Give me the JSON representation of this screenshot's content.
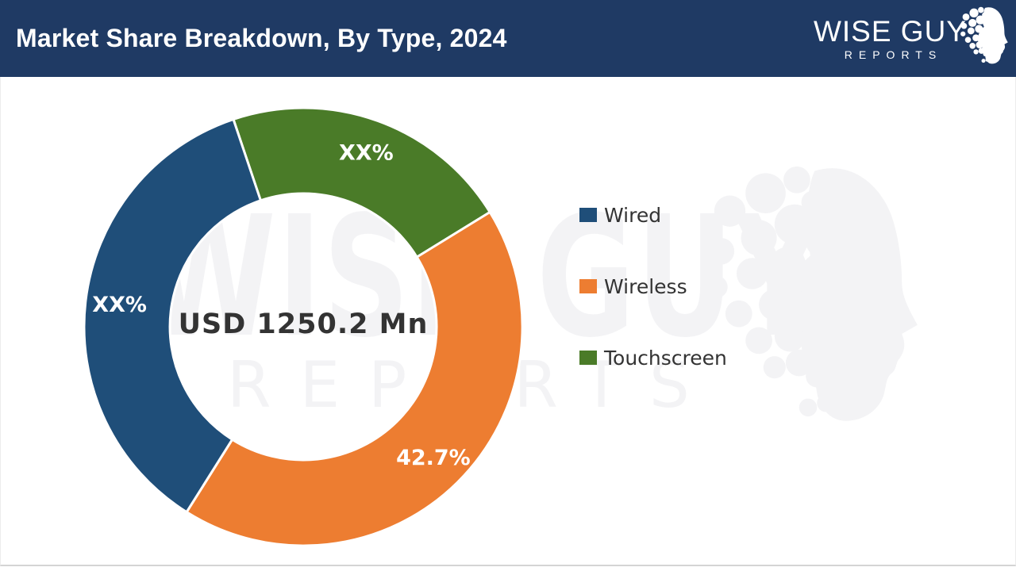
{
  "header": {
    "title": "Market Share Breakdown, By Type, 2024",
    "bg_color": "#1F3A64",
    "logo": {
      "line1": "WISE GUY",
      "line2": "REPORTS"
    }
  },
  "watermark": {
    "line1": "WISE GUY",
    "line2": "REPORTS"
  },
  "chart_data": {
    "type": "pie",
    "subtype": "donut",
    "title": "Market Share Breakdown, By Type, 2024",
    "center_label": "USD 1250.2 Mn",
    "start_angle_deg_clockwise_from_top": -18.6,
    "slices_clockwise": [
      {
        "label": "Touchscreen",
        "value_pct": 21.4,
        "display_label": "XX%",
        "color": "#4A7B28"
      },
      {
        "label": "Wireless",
        "value_pct": 42.7,
        "display_label": "42.7%",
        "color": "#ED7D31"
      },
      {
        "label": "Wired",
        "value_pct": 35.9,
        "display_label": "XX%",
        "color": "#1F4E79"
      }
    ],
    "legend": [
      {
        "label": "Wired",
        "color": "#1F4E79"
      },
      {
        "label": "Wireless",
        "color": "#ED7D31"
      },
      {
        "label": "Touchscreen",
        "color": "#4A7B28"
      }
    ],
    "legend_position": "right",
    "slice_label_color": "#FFFFFF",
    "separator_color": "#FFFFFF"
  }
}
